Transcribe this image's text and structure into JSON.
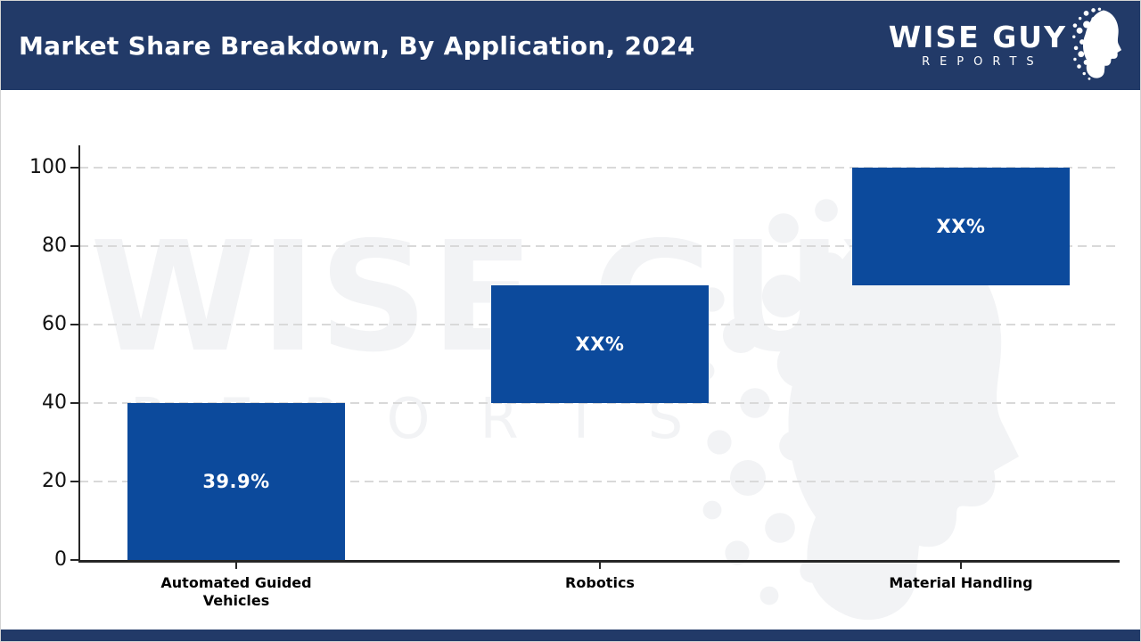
{
  "header": {
    "title": "Market Share Breakdown, By Application, 2024",
    "logo": {
      "line1": "WISE GUY",
      "line2": "REPORTS"
    }
  },
  "watermark": {
    "line1": "WISE GUY",
    "line2": "REPORTS"
  },
  "colors": {
    "navy": "#223a68",
    "bar_blue": "#0c4a9c",
    "grid": "#d9d9d9",
    "axis": "#262626",
    "bar_label": "#ffffff",
    "watermark": "#f2f3f5",
    "tick_text": "#111111",
    "xlabel_text": "#000000"
  },
  "chart_data": {
    "type": "bar",
    "subtype": "floating-waterfall",
    "title": "Market Share Breakdown, By Application, 2024",
    "categories": [
      "Automated Guided Vehicles",
      "Robotics",
      "Material Handling"
    ],
    "bars": [
      {
        "category": "Automated Guided Vehicles",
        "start": 0,
        "end": 40,
        "label": "39.9%"
      },
      {
        "category": "Robotics",
        "start": 40,
        "end": 70,
        "label": "XX%"
      },
      {
        "category": "Material Handling",
        "start": 70,
        "end": 100,
        "label": "XX%"
      }
    ],
    "ylim": [
      0,
      100
    ],
    "yticks": [
      0,
      20,
      40,
      60,
      80,
      100
    ],
    "xlabel": "",
    "ylabel": "",
    "grid": "horizontal-dashed",
    "legend": false
  }
}
